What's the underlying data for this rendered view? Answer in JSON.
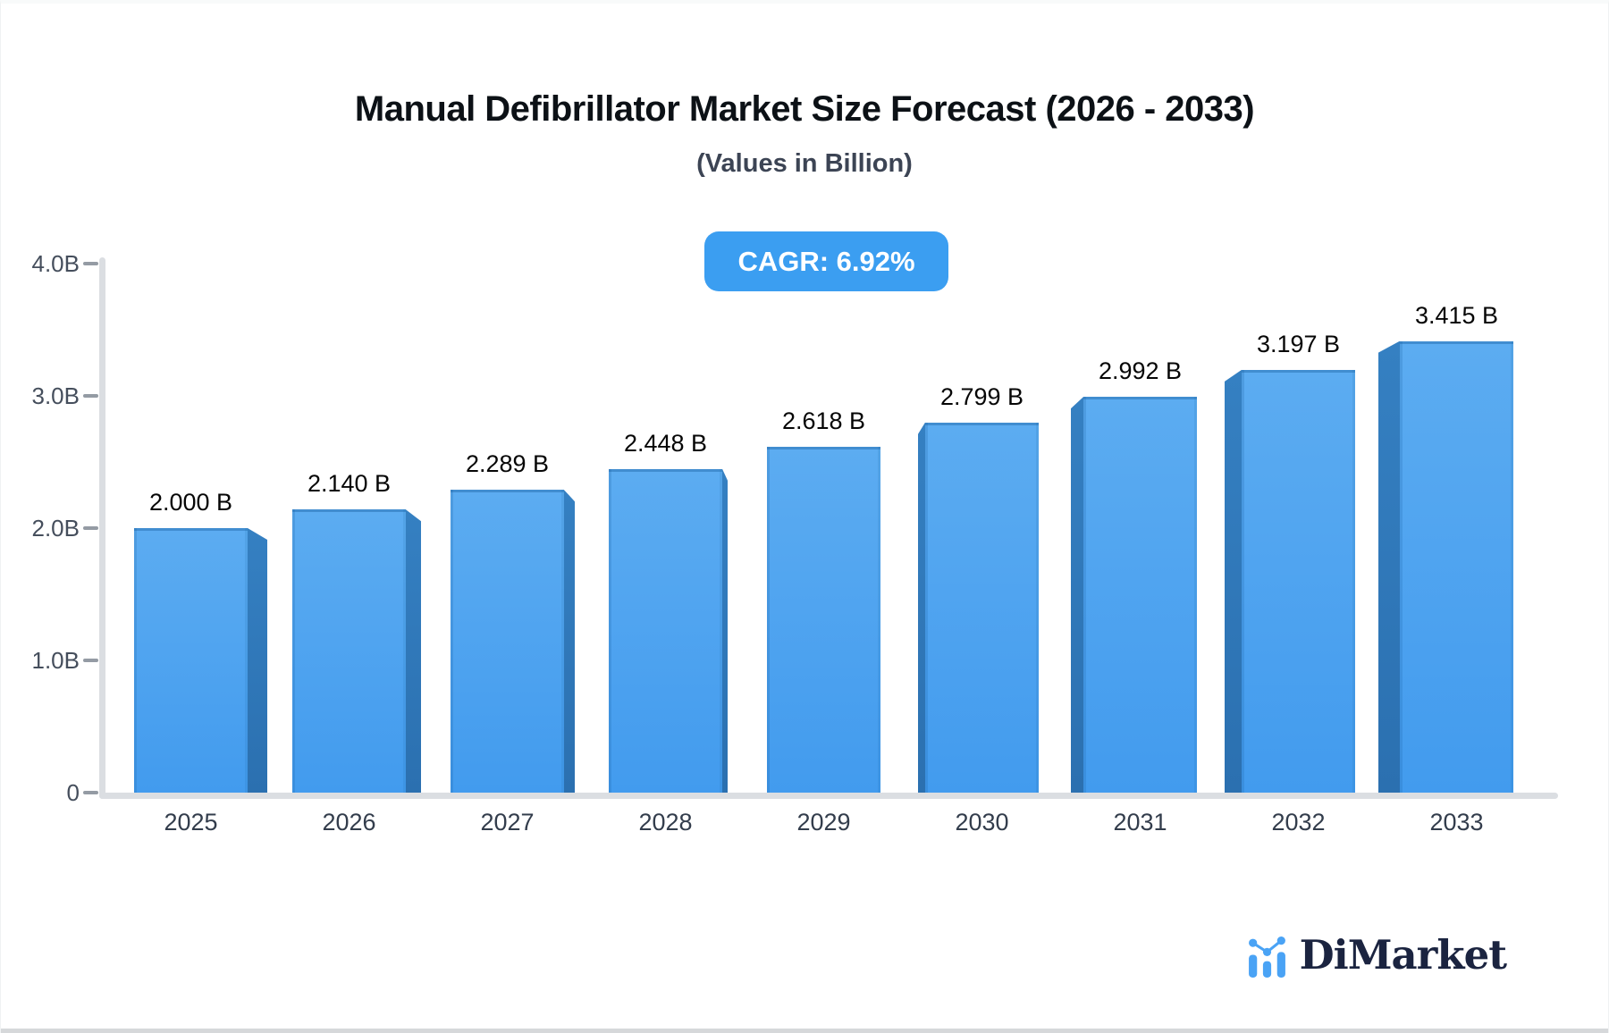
{
  "page": {
    "title": "Manual Defibrillator Market Size Forecast (2026 - 2033)",
    "subtitle": "(Values in Billion)",
    "cagr_label": "CAGR: 6.92%",
    "brand_name": "DiMarket"
  },
  "colors": {
    "badge_bg": "#3b9ef1",
    "bar_front_top": "#5cacf1",
    "bar_front_bottom": "#429bee",
    "bar_side_top": "#3580c2",
    "bar_side_bottom": "#2b70b0",
    "axis_line": "#dbdee2",
    "brand_icon_blue": "#4aa3f5",
    "brand_text_navy": "#1b2440"
  },
  "chart_data": {
    "type": "bar",
    "title": "Manual Defibrillator Market Size Forecast (2026 - 2033)",
    "subtitle": "(Values in Billion)",
    "annotation": "CAGR: 6.92%",
    "categories": [
      "2025",
      "2026",
      "2027",
      "2028",
      "2029",
      "2030",
      "2031",
      "2032",
      "2033"
    ],
    "values": [
      2.0,
      2.14,
      2.289,
      2.448,
      2.618,
      2.799,
      2.992,
      3.197,
      3.415
    ],
    "value_labels": [
      "2.000 B",
      "2.140 B",
      "2.289 B",
      "2.448 B",
      "2.618 B",
      "2.799 B",
      "2.992 B",
      "3.197 B",
      "3.415 B"
    ],
    "y_ticks": [
      {
        "label": "4.0B",
        "value": 4.0
      },
      {
        "label": "3.0B",
        "value": 3.0
      },
      {
        "label": "2.0B",
        "value": 2.0
      },
      {
        "label": "1.0B",
        "value": 1.0
      },
      {
        "label": "0",
        "value": 0
      }
    ],
    "ylim": [
      0,
      4.0
    ],
    "xlabel": "",
    "ylabel": "",
    "grid": false,
    "legend_position": "none",
    "bar_style": "3d-extruded-blue"
  }
}
